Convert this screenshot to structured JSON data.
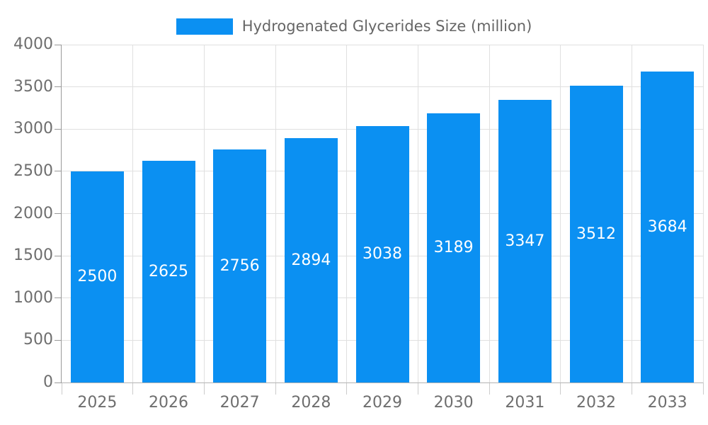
{
  "legend": {
    "label": "Hydrogenated Glycerides Size (million)"
  },
  "chart_data": {
    "type": "bar",
    "title": "Hydrogenated Glycerides Size (million)",
    "categories": [
      "2025",
      "2026",
      "2027",
      "2028",
      "2029",
      "2030",
      "2031",
      "2032",
      "2033"
    ],
    "series": [
      {
        "name": "Hydrogenated Glycerides Size (million)",
        "values": [
          2500,
          2625,
          2756,
          2894,
          3038,
          3189,
          3347,
          3512,
          3684
        ]
      }
    ],
    "xlabel": "",
    "ylabel": "",
    "ylim": [
      0,
      4000
    ],
    "ytick_step": 500,
    "yticks": [
      0,
      500,
      1000,
      1500,
      2000,
      2500,
      3000,
      3500,
      4000
    ],
    "grid": true,
    "legend_position": "top-center",
    "value_labels": "inside-center"
  },
  "colors": {
    "bar": "#0b90f2",
    "bar_label": "#ffffff",
    "axis_text": "#6e6e6e",
    "legend_text": "#666666",
    "gridline": "#e0e0e0",
    "y_axis_line": "#999999",
    "x_axis_line": "#b3b3b3",
    "x_tick": "#cccccc",
    "background": "#ffffff"
  }
}
